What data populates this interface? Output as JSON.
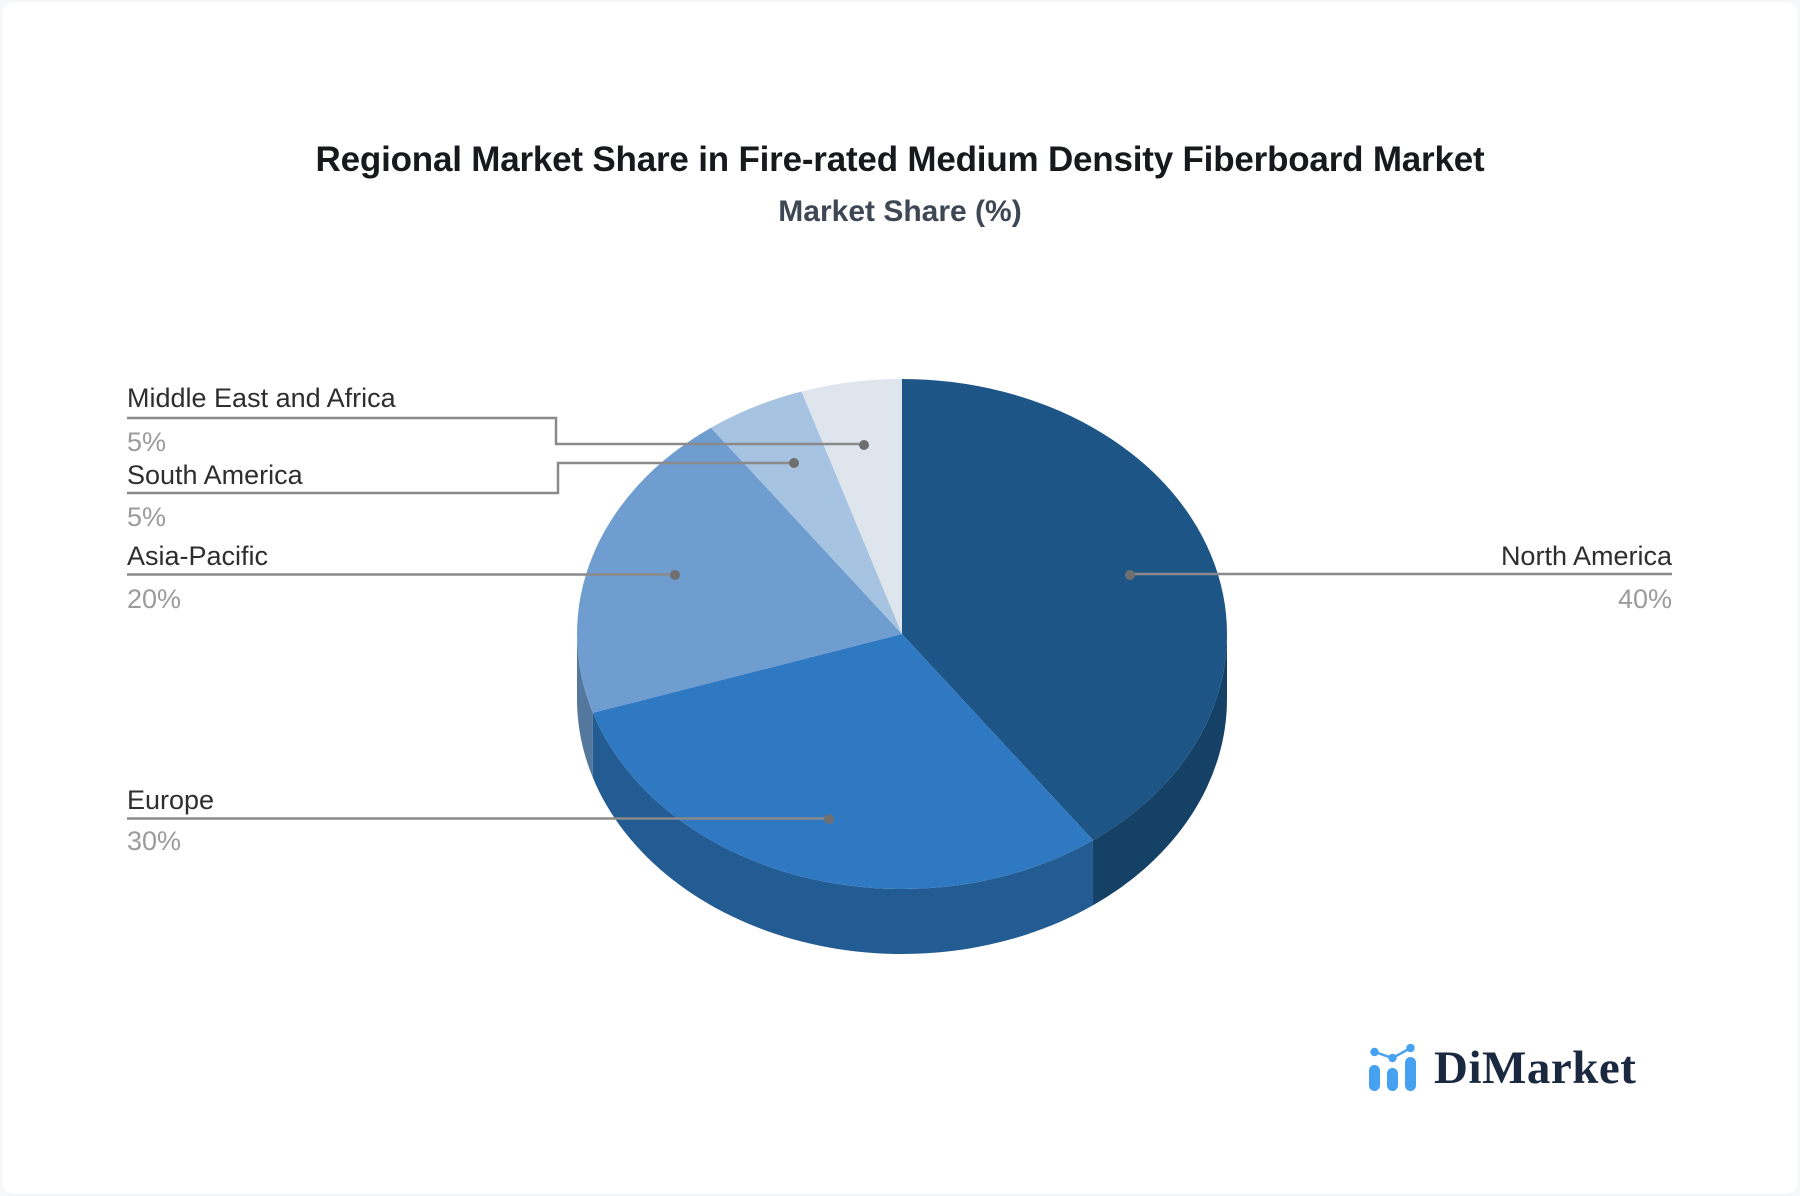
{
  "header": {
    "title": "Regional Market Share in Fire-rated Medium Density Fiberboard Market",
    "subtitle": "Market Share (%)"
  },
  "chart_data": {
    "type": "pie",
    "title": "Regional Market Share in Fire-rated Medium Density Fiberboard Market",
    "subtitle": "Market Share (%)",
    "unit": "%",
    "style": "3d",
    "direction": "clockwise",
    "start_angle": "12-oclock",
    "legend_position": "callout-labels",
    "slices": [
      {
        "label": "North America",
        "value": 40,
        "display": "40%",
        "color": "#1c5586"
      },
      {
        "label": "Europe",
        "value": 30,
        "display": "30%",
        "color": "#2e79c2"
      },
      {
        "label": "Asia-Pacific",
        "value": 20,
        "display": "20%",
        "color": "#6f9dd0"
      },
      {
        "label": "South America",
        "value": 5,
        "display": "5%",
        "color": "#a6c3e1"
      },
      {
        "label": "Middle East and Africa",
        "value": 5,
        "display": "5%",
        "color": "#dfe5ed"
      }
    ],
    "leader_line_color": "#8a8a8a",
    "leader_dot_color": "#6f6f6f",
    "label_color": "#2e2e2e",
    "value_color": "#9b9b9b"
  },
  "branding": {
    "name": "DiMarket",
    "icon": "bar-line-chart-icon",
    "icon_color": "#47a1f1",
    "text_color": "#1b2940"
  }
}
